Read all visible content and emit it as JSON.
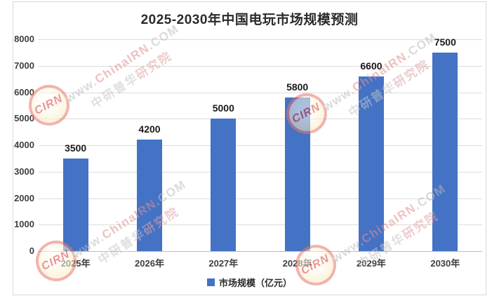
{
  "chart_data": {
    "type": "bar",
    "title": "2025-2030年中国电玩市场规模预测",
    "categories": [
      "2025年",
      "2026年",
      "2027年",
      "2028年",
      "2029年",
      "2030年"
    ],
    "values": [
      3500,
      4200,
      5000,
      5800,
      6600,
      7500
    ],
    "legend": "市场规模（亿元）",
    "legend_position": "bottom",
    "xlabel": "",
    "ylabel": "",
    "ylim": [
      0,
      8000
    ],
    "ytick_step": 1000,
    "grid": true,
    "bar_color": "#4472C4",
    "value_labels": true
  },
  "watermark": {
    "logo_text": "CIRN",
    "line1_parts": [
      "www.",
      "ChinaIRN",
      ".COM"
    ],
    "line2": "中研普华研究院"
  }
}
